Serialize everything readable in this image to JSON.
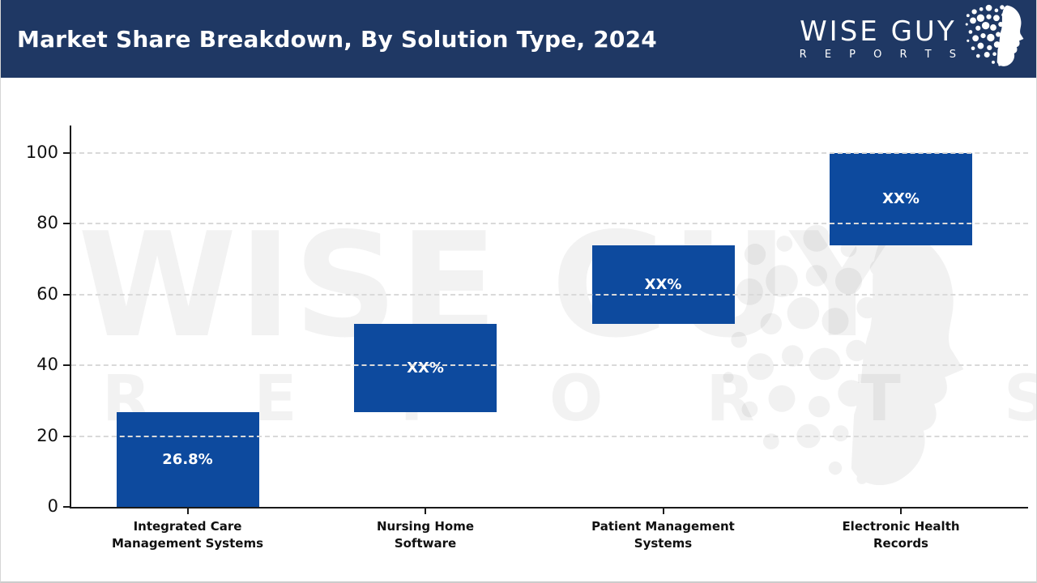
{
  "header": {
    "title": "Market Share Breakdown, By Solution Type, 2024",
    "brand": {
      "name": "WISE GUY",
      "sub": "R E P O R T S"
    }
  },
  "watermark": {
    "line1": "WISE GUY",
    "line2": "R E P O R T S"
  },
  "colors": {
    "header_bg": "#1f3864",
    "bar_fill": "#0d4a9e",
    "bar_label": "#ffffff",
    "gridline": "#d9d9d9",
    "axis": "#1a1a1a",
    "background": "#ffffff"
  },
  "chart_data": {
    "type": "bar",
    "subtype": "waterfall",
    "title": "Market Share Breakdown, By Solution Type, 2024",
    "categories": [
      [
        "Integrated Care",
        "Management Systems"
      ],
      [
        "Nursing Home",
        "Software"
      ],
      [
        "Patient Management",
        "Systems"
      ],
      [
        "Electronic Health",
        "Records"
      ]
    ],
    "segments": [
      {
        "start": 0,
        "end": 26.8,
        "label": "26.8%"
      },
      {
        "start": 26.8,
        "end": 51.7,
        "label": "XX%"
      },
      {
        "start": 51.7,
        "end": 73.8,
        "label": "XX%"
      },
      {
        "start": 73.8,
        "end": 100,
        "label": "XX%"
      }
    ],
    "yticks": [
      0,
      20,
      40,
      60,
      80,
      100
    ],
    "ylim": [
      0,
      107.7
    ],
    "xlabel": "",
    "ylabel": "",
    "legend": "none",
    "grid": "horizontal dashed, drawn over bars"
  }
}
